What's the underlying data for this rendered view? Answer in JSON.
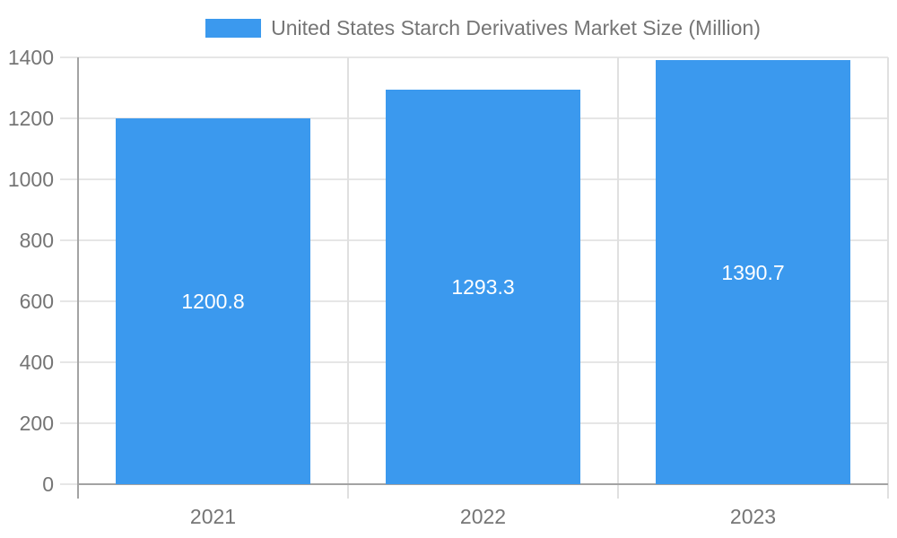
{
  "colors": {
    "bar": "#3b99ee",
    "tick_text": "#757575",
    "gridline": "#e6e6e6",
    "axis_line": "#a3a3a3",
    "value_label_text": "#ffffff"
  },
  "legend": {
    "swatch": "bar-color-swatch",
    "label": "United States Starch Derivatives Market Size (Million)"
  },
  "chart_data": {
    "type": "bar",
    "title": "United States Starch Derivatives Market Size (Million)",
    "categories": [
      "2021",
      "2022",
      "2023"
    ],
    "series": [
      {
        "name": "United States Starch Derivatives Market Size (Million)",
        "values": [
          1200.8,
          1293.3,
          1390.7
        ]
      }
    ],
    "value_labels": [
      "1200.8",
      "1293.3",
      "1390.7"
    ],
    "xlabel": "",
    "ylabel": "",
    "ylim": [
      0,
      1400
    ],
    "ytick_step": 200,
    "ytick_labels": [
      "0",
      "200",
      "400",
      "600",
      "800",
      "1000",
      "1200",
      "1400"
    ],
    "grid": true,
    "legend_position": "top",
    "bar_color": "#3b99ee"
  }
}
